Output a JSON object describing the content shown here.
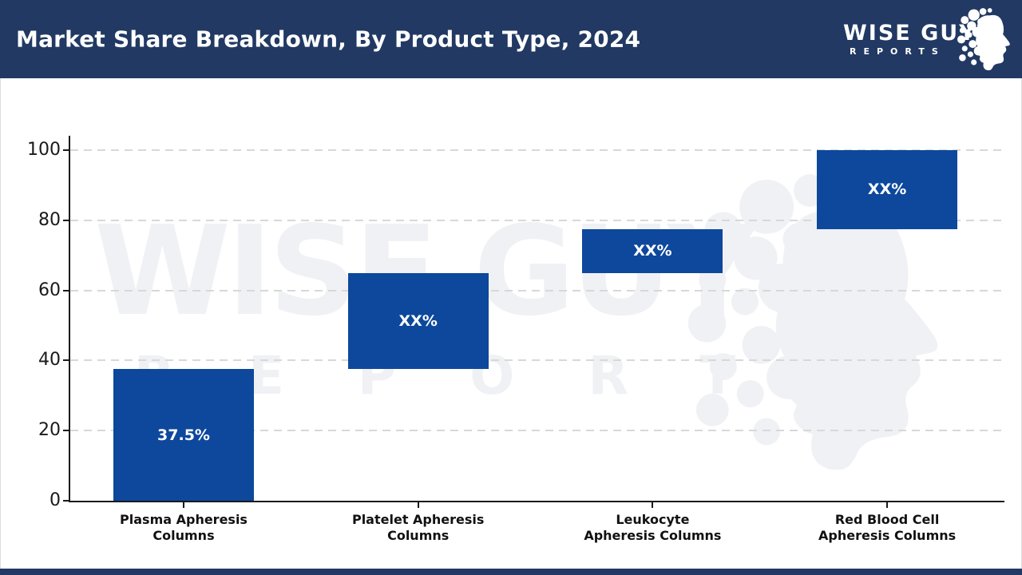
{
  "header": {
    "title": "Market Share Breakdown, By Product Type, 2024",
    "logo_line1": "WISE GUY",
    "logo_line2": "REPORTS"
  },
  "watermark": {
    "line1": "WISE GUY",
    "line2": "REPORTS"
  },
  "chart_data": {
    "type": "bar",
    "variant": "waterfall",
    "title": "Market Share Breakdown, By Product Type, 2024",
    "categories": [
      "Plasma Apheresis Columns",
      "Platelet Apheresis Columns",
      "Leukocyte Apheresis Columns",
      "Red Blood Cell Apheresis Columns"
    ],
    "category_lines": [
      [
        "Plasma Apheresis",
        "Columns"
      ],
      [
        "Platelet Apheresis",
        "Columns"
      ],
      [
        "Leukocyte",
        "Apheresis Columns"
      ],
      [
        "Red Blood Cell",
        "Apheresis Columns"
      ]
    ],
    "segments": [
      {
        "category": "Plasma Apheresis Columns",
        "start": 0,
        "end": 37.5,
        "label": "37.5%"
      },
      {
        "category": "Platelet Apheresis Columns",
        "start": 37.5,
        "end": 65,
        "label": "XX%"
      },
      {
        "category": "Leukocyte Apheresis Columns",
        "start": 65,
        "end": 77.5,
        "label": "XX%"
      },
      {
        "category": "Red Blood Cell Apheresis Columns",
        "start": 77.5,
        "end": 100,
        "label": "XX%"
      }
    ],
    "yticks": [
      0,
      20,
      40,
      60,
      80,
      100
    ],
    "ylim": [
      0,
      105
    ],
    "xlabel": "",
    "ylabel": "",
    "grid": "horizontal-dashed",
    "legend": "none",
    "bar_color": "#0D489C",
    "bar_label_color": "#FFFFFF"
  },
  "colors": {
    "header_bg": "#213963",
    "footer_bg": "#213963",
    "bar": "#0D489C",
    "gridline": "#D8D8D8",
    "axis": "#1A1A1A",
    "watermark": "#F0F1F4",
    "background": "#FFFFFF"
  }
}
